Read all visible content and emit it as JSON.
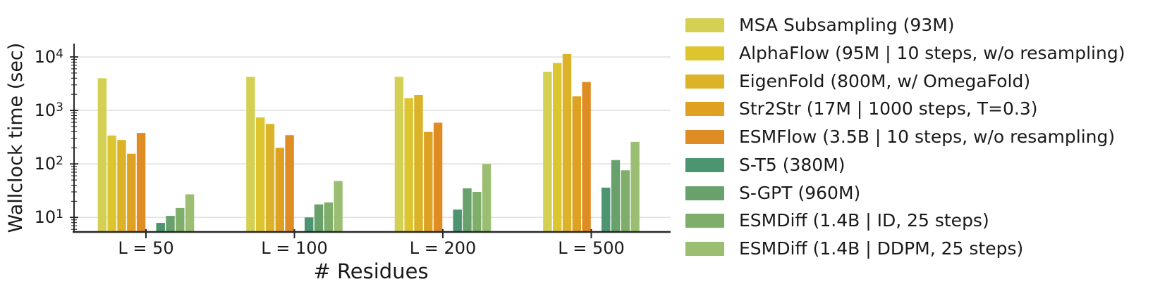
{
  "chart_data": {
    "type": "bar",
    "title": "",
    "xlabel": "# Residues",
    "ylabel": "Wallclock time (sec)",
    "yscale": "log",
    "ylim": [
      5.4,
      17700
    ],
    "ytick_base": "10",
    "ytick_exponents": [
      1,
      2,
      3,
      4
    ],
    "grid": "horizontal gridlines at each decade",
    "legend_position": "right of axes, no frame",
    "categories": [
      "L = 50",
      "L = 100",
      "L = 200",
      "L = 500"
    ],
    "series": [
      {
        "name": "MSA Subsampling (93M)",
        "color": "#d3d054",
        "block": 1,
        "values": [
          4000,
          4250,
          4250,
          5300
        ]
      },
      {
        "name": "AlphaFlow (95M | 10 steps, w/o resampling)",
        "color": "#ddc52f",
        "block": 1,
        "values": [
          340,
          740,
          1700,
          7700
        ]
      },
      {
        "name": "EigenFold (800M, w/ OmegaFold)",
        "color": "#dcb228",
        "block": 1,
        "values": [
          280,
          560,
          1950,
          11300
        ]
      },
      {
        "name": "Str2Str (17M | 1000 steps, T=0.3)",
        "color": "#dfa122",
        "block": 1,
        "values": [
          155,
          200,
          395,
          1830
        ]
      },
      {
        "name": "ESMFlow (3.5B | 10 steps, w/o resampling)",
        "color": "#e08c24",
        "block": 1,
        "values": [
          380,
          345,
          590,
          3400
        ]
      },
      {
        "name": "S-T5 (380M)",
        "color": "#4d9470",
        "block": 2,
        "values": [
          7.9,
          10,
          14,
          36
        ]
      },
      {
        "name": "S-GPT (960M)",
        "color": "#68a16c",
        "block": 2,
        "values": [
          10.7,
          17.5,
          35,
          118
        ]
      },
      {
        "name": "ESMDiff (1.4B | ID, 25 steps)",
        "color": "#7fae6b",
        "block": 2,
        "values": [
          15,
          19,
          30,
          76
        ]
      },
      {
        "name": "ESMDiff (1.4B | DDPM, 25 steps)",
        "color": "#9bbe72",
        "block": 2,
        "values": [
          27,
          48,
          100,
          258
        ]
      }
    ]
  },
  "colors": {
    "spine": "#262626",
    "gridline": "#e1e1e1",
    "text": "#1a1a1a",
    "background": "#ffffff"
  }
}
